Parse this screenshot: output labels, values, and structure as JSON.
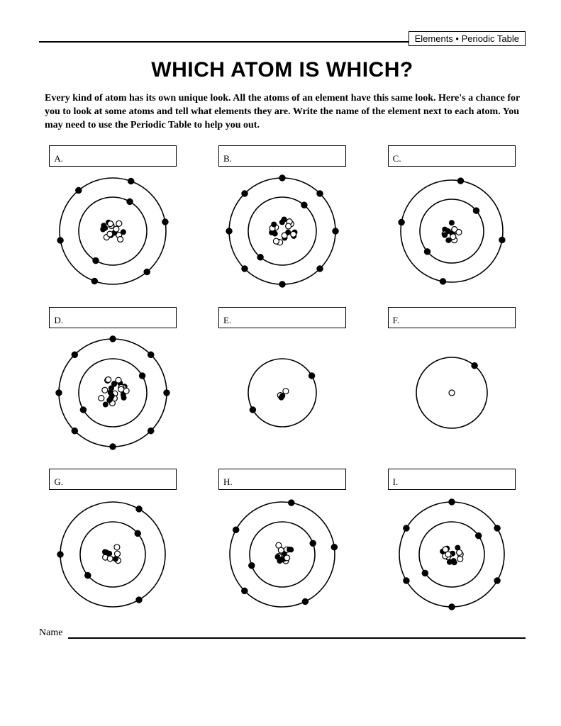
{
  "header_tag": "Elements • Periodic Table",
  "title": "WHICH ATOM IS WHICH?",
  "intro": "Every kind of atom has its own unique look. All the atoms of an element have this same look. Here's a chance for you to look at some atoms and tell what elements they are. Write the name of the element next to each atom. You may need to use the Periodic Table to help you out.",
  "name_label": "Name",
  "style": {
    "page_bg": "#ffffff",
    "ink": "#000000",
    "title_fontsize": 30,
    "intro_fontsize": 14,
    "label_fontsize": 13,
    "shell_stroke_width": 1.6,
    "electron_radius": 4.5,
    "nucleon_radius": 4,
    "grid_columns": 3,
    "grid_rows": 3,
    "cell_svg_size": 170,
    "answer_box_w": 180,
    "answer_box_h": 30
  },
  "atoms": [
    {
      "label": "A.",
      "shells": [
        {
          "r": 48,
          "electrons": [
            30,
            210
          ]
        },
        {
          "r": 75,
          "electrons": [
            20,
            80,
            140,
            200,
            260,
            320
          ]
        }
      ],
      "nucleus": {
        "dark": 8,
        "light": 8,
        "spread": 16
      }
    },
    {
      "label": "B.",
      "shells": [
        {
          "r": 48,
          "electrons": [
            40,
            220
          ]
        },
        {
          "r": 75,
          "electrons": [
            0,
            45,
            90,
            135,
            180,
            225,
            270,
            315
          ]
        }
      ],
      "nucleus": {
        "dark": 10,
        "light": 10,
        "spread": 18
      }
    },
    {
      "label": "C.",
      "shells": [
        {
          "r": 45,
          "electrons": [
            50,
            230
          ]
        },
        {
          "r": 72,
          "electrons": [
            10,
            100,
            190,
            280
          ]
        }
      ],
      "nucleus": {
        "dark": 6,
        "light": 6,
        "spread": 14
      }
    },
    {
      "label": "D.",
      "shells": [
        {
          "r": 48,
          "electrons": [
            60,
            240
          ]
        },
        {
          "r": 76,
          "electrons": [
            0,
            45,
            90,
            135,
            180,
            225,
            270,
            315
          ]
        }
      ],
      "nucleus": {
        "dark": 12,
        "light": 12,
        "spread": 20
      }
    },
    {
      "label": "E.",
      "shells": [
        {
          "r": 48,
          "electrons": [
            60,
            240
          ]
        }
      ],
      "nucleus": {
        "dark": 2,
        "light": 2,
        "spread": 8
      }
    },
    {
      "label": "F.",
      "shells": [
        {
          "r": 50,
          "electrons": [
            40
          ]
        }
      ],
      "nucleus": {
        "dark": 0,
        "light": 1,
        "spread": 0
      }
    },
    {
      "label": "G.",
      "shells": [
        {
          "r": 46,
          "electrons": [
            50,
            230
          ]
        },
        {
          "r": 74,
          "electrons": [
            30,
            150,
            270
          ]
        }
      ],
      "nucleus": {
        "dark": 5,
        "light": 5,
        "spread": 12
      }
    },
    {
      "label": "H.",
      "shells": [
        {
          "r": 46,
          "electrons": [
            70,
            250
          ]
        },
        {
          "r": 74,
          "electrons": [
            10,
            82,
            154,
            226,
            298
          ]
        }
      ],
      "nucleus": {
        "dark": 7,
        "light": 7,
        "spread": 14
      }
    },
    {
      "label": "I.",
      "shells": [
        {
          "r": 46,
          "electrons": [
            55,
            235
          ]
        },
        {
          "r": 74,
          "electrons": [
            0,
            60,
            120,
            180,
            240,
            300
          ]
        }
      ],
      "nucleus": {
        "dark": 8,
        "light": 8,
        "spread": 14
      }
    }
  ]
}
